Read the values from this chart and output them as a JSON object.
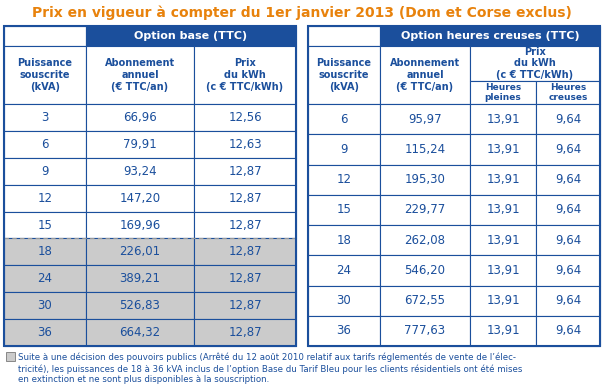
{
  "title": "Prix en vigueur à compter du 1er janvier 2013 (Dom et Corse exclus)",
  "title_color": "#E8820C",
  "border_color": "#1B4F9C",
  "header_bg": "#1B4F9C",
  "header_text_color": "#FFFFFF",
  "data_text_color": "#1B4F9C",
  "gray_bg": "#CBCBCB",
  "white_bg": "#FFFFFF",
  "base_table": {
    "section_header": "Option base (TTC)",
    "col_headers": [
      "Puissance\nsouscrite\n(kVA)",
      "Abonnement\nannuel\n(€ TTC/an)",
      "Prix\ndu kWh\n(c € TTC/kWh)"
    ],
    "rows": [
      [
        "3",
        "66,96",
        "12,56"
      ],
      [
        "6",
        "79,91",
        "12,63"
      ],
      [
        "9",
        "93,24",
        "12,87"
      ],
      [
        "12",
        "147,20",
        "12,87"
      ],
      [
        "15",
        "169,96",
        "12,87"
      ],
      [
        "18",
        "226,01",
        "12,87"
      ],
      [
        "24",
        "389,21",
        "12,87"
      ],
      [
        "30",
        "526,83",
        "12,87"
      ],
      [
        "36",
        "664,32",
        "12,87"
      ]
    ],
    "gray_rows": [
      5,
      6,
      7,
      8
    ]
  },
  "hc_table": {
    "section_header": "Option heures creuses (TTC)",
    "col_headers": [
      "Puissance\nsouscrite\n(kVA)",
      "Abonnement\nannuel\n(€ TTC/an)",
      "Prix\ndu kWh\n(c € TTC/kWh)",
      "Heures\npleines",
      "Heures\ncreuses"
    ],
    "rows": [
      [
        "6",
        "95,97",
        "13,91",
        "9,64"
      ],
      [
        "9",
        "115,24",
        "13,91",
        "9,64"
      ],
      [
        "12",
        "195,30",
        "13,91",
        "9,64"
      ],
      [
        "15",
        "229,77",
        "13,91",
        "9,64"
      ],
      [
        "18",
        "262,08",
        "13,91",
        "9,64"
      ],
      [
        "24",
        "546,20",
        "13,91",
        "9,64"
      ],
      [
        "30",
        "672,55",
        "13,91",
        "9,64"
      ],
      [
        "36",
        "777,63",
        "13,91",
        "9,64"
      ]
    ]
  },
  "footnote_line1": "Suite à une décision des pouvoirs publics (Arrêté du 12 août 2010 relatif aux tarifs réglementés de vente de l’élec-",
  "footnote_line2": "tricité), les puissances de 18 à 36 kVA inclus de l’option Base du Tarif Bleu pour les clients résidentiels ont été mises",
  "footnote_line3": "en extinction et ne sont plus disponibles à la souscription."
}
